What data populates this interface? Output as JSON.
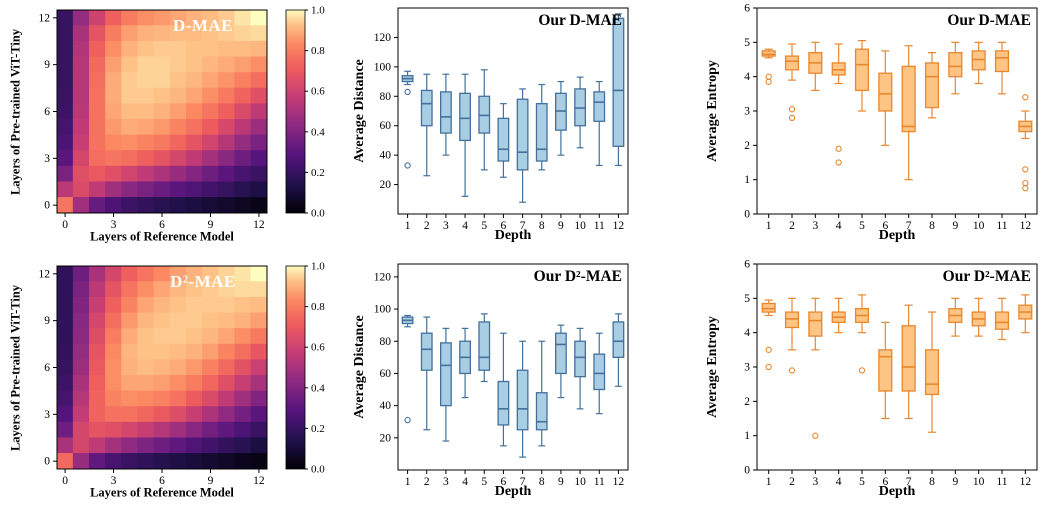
{
  "colors": {
    "background": "#ffffff",
    "axis": "#000000",
    "box_blue_fill": "#a9cde3",
    "box_blue_edge": "#41719c",
    "box_orange_fill": "#fdc483",
    "box_orange_edge": "#e8872e",
    "heatmap_title_color": "#ffffff",
    "magma_stops": [
      [
        0,
        "#000004"
      ],
      [
        0.14,
        "#20114b"
      ],
      [
        0.29,
        "#57157e"
      ],
      [
        0.43,
        "#8c2981"
      ],
      [
        0.57,
        "#c43c75"
      ],
      [
        0.71,
        "#ee5b5e"
      ],
      [
        0.83,
        "#fb8861"
      ],
      [
        0.93,
        "#fec287"
      ],
      [
        1,
        "#fcfdbf"
      ]
    ]
  },
  "chart_data": [
    {
      "type": "heatmap",
      "title": "D-MAE",
      "xlabel": "Layers of Reference Model",
      "ylabel": "Layers of Pre-trained ViT-Tiny",
      "xticks": [
        0,
        3,
        6,
        9,
        12
      ],
      "yticks": [
        0,
        3,
        6,
        9,
        12
      ],
      "colorbar": {
        "range": [
          0,
          1
        ],
        "ticks": [
          "0.0",
          "0.2",
          "0.4",
          "0.6",
          "0.8",
          "1.0"
        ]
      },
      "matrix_rows_top_to_bottom": [
        [
          0.2,
          0.45,
          0.6,
          0.72,
          0.8,
          0.84,
          0.86,
          0.88,
          0.9,
          0.92,
          0.94,
          0.97,
          1.0
        ],
        [
          0.2,
          0.5,
          0.68,
          0.8,
          0.87,
          0.9,
          0.91,
          0.92,
          0.92,
          0.93,
          0.94,
          0.95,
          0.96
        ],
        [
          0.2,
          0.52,
          0.72,
          0.84,
          0.9,
          0.93,
          0.94,
          0.94,
          0.93,
          0.93,
          0.92,
          0.92,
          0.91
        ],
        [
          0.2,
          0.53,
          0.75,
          0.87,
          0.93,
          0.95,
          0.95,
          0.94,
          0.93,
          0.91,
          0.89,
          0.87,
          0.84
        ],
        [
          0.2,
          0.53,
          0.76,
          0.89,
          0.94,
          0.95,
          0.95,
          0.93,
          0.91,
          0.88,
          0.85,
          0.81,
          0.76
        ],
        [
          0.21,
          0.53,
          0.77,
          0.89,
          0.94,
          0.94,
          0.93,
          0.91,
          0.88,
          0.84,
          0.79,
          0.73,
          0.66
        ],
        [
          0.22,
          0.54,
          0.77,
          0.88,
          0.92,
          0.92,
          0.9,
          0.87,
          0.83,
          0.78,
          0.72,
          0.64,
          0.56
        ],
        [
          0.24,
          0.56,
          0.77,
          0.86,
          0.89,
          0.88,
          0.86,
          0.82,
          0.77,
          0.71,
          0.63,
          0.55,
          0.47
        ],
        [
          0.26,
          0.58,
          0.77,
          0.83,
          0.84,
          0.82,
          0.79,
          0.74,
          0.68,
          0.61,
          0.53,
          0.45,
          0.38
        ],
        [
          0.3,
          0.62,
          0.76,
          0.78,
          0.76,
          0.72,
          0.68,
          0.62,
          0.56,
          0.49,
          0.42,
          0.35,
          0.29
        ],
        [
          0.38,
          0.66,
          0.7,
          0.66,
          0.61,
          0.56,
          0.51,
          0.46,
          0.41,
          0.35,
          0.3,
          0.25,
          0.21
        ],
        [
          0.55,
          0.64,
          0.56,
          0.48,
          0.42,
          0.38,
          0.34,
          0.3,
          0.27,
          0.23,
          0.2,
          0.16,
          0.13
        ],
        [
          0.78,
          0.48,
          0.33,
          0.26,
          0.22,
          0.19,
          0.16,
          0.14,
          0.12,
          0.1,
          0.08,
          0.06,
          0.04
        ]
      ]
    },
    {
      "type": "box",
      "title": "Our D-MAE",
      "xlabel": "Depth",
      "ylabel": "Average Distance",
      "color_scheme": "blue",
      "ylim": [
        0,
        140
      ],
      "yticks": [
        20,
        40,
        60,
        80,
        100,
        120
      ],
      "categories": [
        "1",
        "2",
        "3",
        "4",
        "5",
        "6",
        "7",
        "8",
        "9",
        "10",
        "11",
        "12"
      ],
      "boxes": [
        {
          "lo": 88,
          "q1": 90,
          "med": 92,
          "q3": 94,
          "hi": 97,
          "outliers": [
            83,
            33
          ]
        },
        {
          "lo": 26,
          "q1": 60,
          "med": 75,
          "q3": 84,
          "hi": 95,
          "outliers": []
        },
        {
          "lo": 40,
          "q1": 55,
          "med": 66,
          "q3": 83,
          "hi": 95,
          "outliers": []
        },
        {
          "lo": 12,
          "q1": 50,
          "med": 65,
          "q3": 82,
          "hi": 95,
          "outliers": []
        },
        {
          "lo": 30,
          "q1": 55,
          "med": 67,
          "q3": 80,
          "hi": 98,
          "outliers": []
        },
        {
          "lo": 25,
          "q1": 36,
          "med": 44,
          "q3": 65,
          "hi": 75,
          "outliers": []
        },
        {
          "lo": 8,
          "q1": 30,
          "med": 42,
          "q3": 78,
          "hi": 85,
          "outliers": []
        },
        {
          "lo": 30,
          "q1": 36,
          "med": 44,
          "q3": 75,
          "hi": 88,
          "outliers": []
        },
        {
          "lo": 40,
          "q1": 57,
          "med": 70,
          "q3": 82,
          "hi": 90,
          "outliers": []
        },
        {
          "lo": 45,
          "q1": 60,
          "med": 72,
          "q3": 85,
          "hi": 93,
          "outliers": []
        },
        {
          "lo": 33,
          "q1": 63,
          "med": 76,
          "q3": 83,
          "hi": 90,
          "outliers": []
        },
        {
          "lo": 33,
          "q1": 46,
          "med": 84,
          "q3": 133,
          "hi": 136,
          "outliers": []
        }
      ]
    },
    {
      "type": "box",
      "title": "Our D-MAE",
      "xlabel": "Depth",
      "ylabel": "Average Entropy",
      "color_scheme": "orange",
      "ylim": [
        0,
        6
      ],
      "yticks": [
        0,
        1,
        2,
        3,
        4,
        5,
        6
      ],
      "categories": [
        "1",
        "2",
        "3",
        "4",
        "5",
        "6",
        "7",
        "8",
        "9",
        "10",
        "11",
        "12"
      ],
      "boxes": [
        {
          "lo": 4.55,
          "q1": 4.6,
          "med": 4.65,
          "q3": 4.75,
          "hi": 4.8,
          "outliers": [
            4.0,
            3.85
          ]
        },
        {
          "lo": 3.9,
          "q1": 4.2,
          "med": 4.45,
          "q3": 4.6,
          "hi": 4.95,
          "outliers": [
            3.05,
            2.8
          ]
        },
        {
          "lo": 3.6,
          "q1": 4.1,
          "med": 4.4,
          "q3": 4.7,
          "hi": 5.0,
          "outliers": []
        },
        {
          "lo": 3.8,
          "q1": 4.05,
          "med": 4.2,
          "q3": 4.4,
          "hi": 4.95,
          "outliers": [
            1.9,
            1.5
          ]
        },
        {
          "lo": 3.0,
          "q1": 3.6,
          "med": 4.35,
          "q3": 4.8,
          "hi": 5.05,
          "outliers": []
        },
        {
          "lo": 2.0,
          "q1": 3.0,
          "med": 3.5,
          "q3": 4.1,
          "hi": 4.75,
          "outliers": []
        },
        {
          "lo": 1.0,
          "q1": 2.4,
          "med": 2.55,
          "q3": 4.3,
          "hi": 4.9,
          "outliers": []
        },
        {
          "lo": 2.8,
          "q1": 3.1,
          "med": 4.0,
          "q3": 4.4,
          "hi": 4.7,
          "outliers": []
        },
        {
          "lo": 3.5,
          "q1": 4.0,
          "med": 4.3,
          "q3": 4.7,
          "hi": 5.0,
          "outliers": []
        },
        {
          "lo": 3.8,
          "q1": 4.2,
          "med": 4.5,
          "q3": 4.75,
          "hi": 5.0,
          "outliers": []
        },
        {
          "lo": 3.5,
          "q1": 4.15,
          "med": 4.55,
          "q3": 4.75,
          "hi": 5.0,
          "outliers": []
        },
        {
          "lo": 2.2,
          "q1": 2.4,
          "med": 2.55,
          "q3": 2.7,
          "hi": 3.0,
          "outliers": [
            3.4,
            1.3,
            0.9,
            0.75
          ]
        }
      ]
    },
    {
      "type": "heatmap",
      "title": "D²-MAE",
      "xlabel": "Layers of Reference Model",
      "ylabel": "Layers of Pre-trained ViT-Tiny",
      "xticks": [
        0,
        3,
        6,
        9,
        12
      ],
      "yticks": [
        0,
        3,
        6,
        9,
        12
      ],
      "colorbar": {
        "range": [
          0,
          1
        ],
        "ticks": [
          "0.0",
          "0.2",
          "0.4",
          "0.6",
          "0.8",
          "1.0"
        ]
      },
      "matrix_rows_top_to_bottom": [
        [
          0.18,
          0.35,
          0.5,
          0.62,
          0.72,
          0.78,
          0.83,
          0.87,
          0.9,
          0.93,
          0.95,
          0.97,
          1.0
        ],
        [
          0.18,
          0.38,
          0.55,
          0.68,
          0.78,
          0.84,
          0.88,
          0.91,
          0.93,
          0.94,
          0.95,
          0.96,
          0.96
        ],
        [
          0.18,
          0.4,
          0.58,
          0.72,
          0.82,
          0.88,
          0.91,
          0.93,
          0.94,
          0.94,
          0.94,
          0.93,
          0.92
        ],
        [
          0.18,
          0.42,
          0.62,
          0.76,
          0.86,
          0.91,
          0.93,
          0.94,
          0.94,
          0.93,
          0.92,
          0.9,
          0.87
        ],
        [
          0.18,
          0.43,
          0.65,
          0.8,
          0.89,
          0.93,
          0.94,
          0.94,
          0.93,
          0.91,
          0.88,
          0.84,
          0.79
        ],
        [
          0.19,
          0.45,
          0.68,
          0.83,
          0.91,
          0.93,
          0.93,
          0.92,
          0.9,
          0.87,
          0.82,
          0.76,
          0.69
        ],
        [
          0.2,
          0.47,
          0.7,
          0.84,
          0.9,
          0.92,
          0.91,
          0.89,
          0.86,
          0.81,
          0.75,
          0.67,
          0.59
        ],
        [
          0.22,
          0.5,
          0.72,
          0.84,
          0.88,
          0.88,
          0.87,
          0.84,
          0.8,
          0.74,
          0.66,
          0.58,
          0.5
        ],
        [
          0.24,
          0.53,
          0.73,
          0.82,
          0.84,
          0.83,
          0.81,
          0.77,
          0.71,
          0.64,
          0.56,
          0.48,
          0.4
        ],
        [
          0.28,
          0.57,
          0.73,
          0.77,
          0.77,
          0.74,
          0.7,
          0.65,
          0.58,
          0.51,
          0.44,
          0.37,
          0.3
        ],
        [
          0.35,
          0.62,
          0.68,
          0.66,
          0.62,
          0.58,
          0.53,
          0.48,
          0.42,
          0.36,
          0.31,
          0.26,
          0.21
        ],
        [
          0.5,
          0.62,
          0.56,
          0.49,
          0.44,
          0.39,
          0.35,
          0.31,
          0.27,
          0.23,
          0.19,
          0.16,
          0.12
        ],
        [
          0.75,
          0.46,
          0.32,
          0.25,
          0.21,
          0.18,
          0.15,
          0.13,
          0.11,
          0.09,
          0.07,
          0.05,
          0.03
        ]
      ]
    },
    {
      "type": "box",
      "title": "Our D²-MAE",
      "xlabel": "Depth",
      "ylabel": "Average Distance",
      "color_scheme": "blue",
      "ylim": [
        0,
        128
      ],
      "yticks": [
        20,
        40,
        60,
        80,
        100,
        120
      ],
      "categories": [
        "1",
        "2",
        "3",
        "4",
        "5",
        "6",
        "7",
        "8",
        "9",
        "10",
        "11",
        "12"
      ],
      "boxes": [
        {
          "lo": 89,
          "q1": 91,
          "med": 93,
          "q3": 95,
          "hi": 96,
          "outliers": [
            31
          ]
        },
        {
          "lo": 25,
          "q1": 62,
          "med": 75,
          "q3": 85,
          "hi": 95,
          "outliers": []
        },
        {
          "lo": 18,
          "q1": 40,
          "med": 65,
          "q3": 79,
          "hi": 88,
          "outliers": []
        },
        {
          "lo": 45,
          "q1": 60,
          "med": 70,
          "q3": 80,
          "hi": 88,
          "outliers": []
        },
        {
          "lo": 55,
          "q1": 62,
          "med": 70,
          "q3": 92,
          "hi": 97,
          "outliers": []
        },
        {
          "lo": 15,
          "q1": 28,
          "med": 38,
          "q3": 55,
          "hi": 85,
          "outliers": []
        },
        {
          "lo": 8,
          "q1": 25,
          "med": 38,
          "q3": 62,
          "hi": 80,
          "outliers": []
        },
        {
          "lo": 15,
          "q1": 25,
          "med": 30,
          "q3": 48,
          "hi": 80,
          "outliers": []
        },
        {
          "lo": 45,
          "q1": 60,
          "med": 78,
          "q3": 85,
          "hi": 90,
          "outliers": []
        },
        {
          "lo": 38,
          "q1": 58,
          "med": 70,
          "q3": 80,
          "hi": 88,
          "outliers": []
        },
        {
          "lo": 35,
          "q1": 50,
          "med": 60,
          "q3": 72,
          "hi": 85,
          "outliers": []
        },
        {
          "lo": 52,
          "q1": 70,
          "med": 80,
          "q3": 92,
          "hi": 97,
          "outliers": []
        }
      ]
    },
    {
      "type": "box",
      "title": "Our D²-MAE",
      "xlabel": "Depth",
      "ylabel": "Average Entropy",
      "color_scheme": "orange",
      "ylim": [
        0,
        6
      ],
      "yticks": [
        0,
        1,
        2,
        3,
        4,
        5,
        6
      ],
      "categories": [
        "1",
        "2",
        "3",
        "4",
        "5",
        "6",
        "7",
        "8",
        "9",
        "10",
        "11",
        "12"
      ],
      "boxes": [
        {
          "lo": 4.5,
          "q1": 4.6,
          "med": 4.7,
          "q3": 4.85,
          "hi": 4.95,
          "outliers": [
            3.5,
            3.0
          ]
        },
        {
          "lo": 3.5,
          "q1": 4.15,
          "med": 4.4,
          "q3": 4.6,
          "hi": 5.0,
          "outliers": [
            2.9
          ]
        },
        {
          "lo": 3.5,
          "q1": 3.9,
          "med": 4.35,
          "q3": 4.6,
          "hi": 5.0,
          "outliers": [
            1.0
          ]
        },
        {
          "lo": 4.0,
          "q1": 4.3,
          "med": 4.45,
          "q3": 4.6,
          "hi": 5.0,
          "outliers": []
        },
        {
          "lo": 4.0,
          "q1": 4.3,
          "med": 4.5,
          "q3": 4.7,
          "hi": 5.1,
          "outliers": [
            2.9
          ]
        },
        {
          "lo": 1.5,
          "q1": 2.3,
          "med": 3.3,
          "q3": 3.5,
          "hi": 4.3,
          "outliers": []
        },
        {
          "lo": 1.5,
          "q1": 2.3,
          "med": 3.0,
          "q3": 4.2,
          "hi": 4.8,
          "outliers": []
        },
        {
          "lo": 1.1,
          "q1": 2.2,
          "med": 2.5,
          "q3": 3.5,
          "hi": 4.6,
          "outliers": []
        },
        {
          "lo": 3.9,
          "q1": 4.3,
          "med": 4.5,
          "q3": 4.7,
          "hi": 5.0,
          "outliers": []
        },
        {
          "lo": 3.9,
          "q1": 4.2,
          "med": 4.4,
          "q3": 4.6,
          "hi": 5.0,
          "outliers": []
        },
        {
          "lo": 3.8,
          "q1": 4.1,
          "med": 4.3,
          "q3": 4.6,
          "hi": 5.0,
          "outliers": []
        },
        {
          "lo": 4.0,
          "q1": 4.4,
          "med": 4.6,
          "q3": 4.8,
          "hi": 5.1,
          "outliers": []
        }
      ]
    }
  ]
}
